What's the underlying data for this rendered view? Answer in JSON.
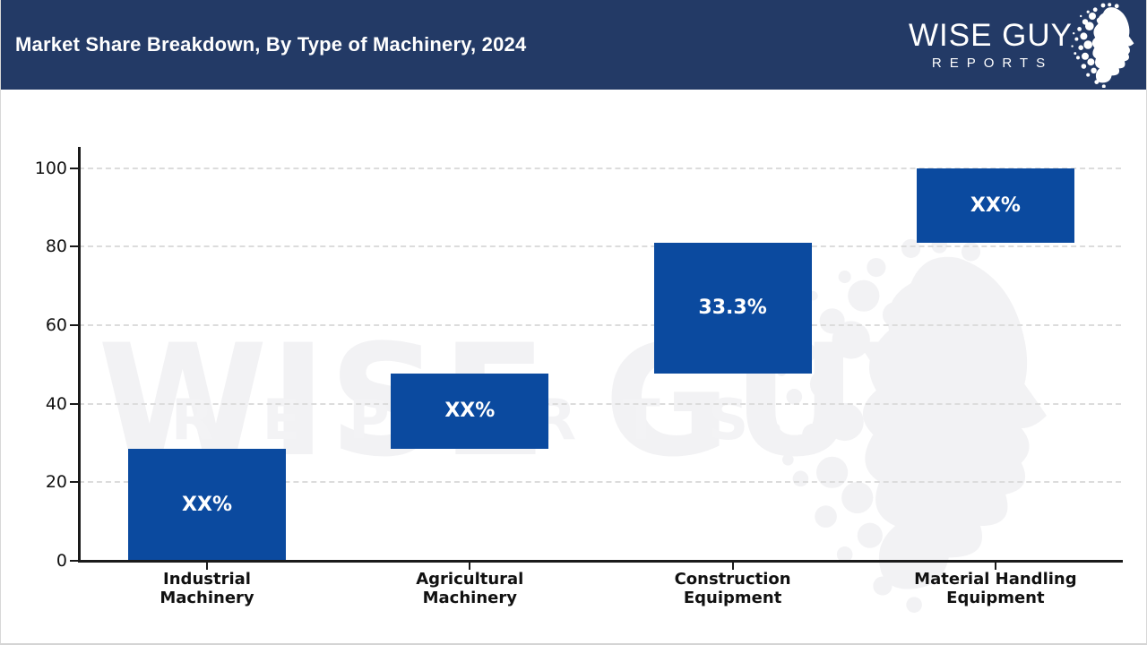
{
  "header": {
    "title": "Market Share Breakdown, By Type of Machinery, 2024",
    "logo": {
      "name": "WISE GUY",
      "tagline": "REPORTS"
    }
  },
  "watermark": {
    "line1": "WISE GUY",
    "line2": "REPORTS"
  },
  "chart_data": {
    "type": "bar",
    "subtype": "waterfall",
    "title": "Market Share Breakdown, By Type of Machinery, 2024",
    "categories": [
      [
        "Industrial",
        "Machinery"
      ],
      [
        "Agricultural",
        "Machinery"
      ],
      [
        "Construction",
        "Equipment"
      ],
      [
        "Material Handling",
        "Equipment"
      ]
    ],
    "bars": [
      {
        "category": "Industrial Machinery",
        "start": 0,
        "end": 28.5,
        "label": "XX%"
      },
      {
        "category": "Agricultural Machinery",
        "start": 28.5,
        "end": 47.7,
        "label": "XX%"
      },
      {
        "category": "Construction Equipment",
        "start": 47.7,
        "end": 81.0,
        "label": "33.3%"
      },
      {
        "category": "Material Handling Equipment",
        "start": 81.0,
        "end": 100,
        "label": "XX%"
      }
    ],
    "ylim": [
      0,
      100
    ],
    "yticks": [
      0,
      20,
      40,
      60,
      80,
      100
    ],
    "xlabel": "",
    "ylabel": "",
    "legend": "none",
    "grid": "horizontal-dashed",
    "bar_color": "#0b4a9f",
    "grid_color": "#dcdcdc",
    "axis_color": "#1a1a1a",
    "header_color": "#233a66"
  }
}
